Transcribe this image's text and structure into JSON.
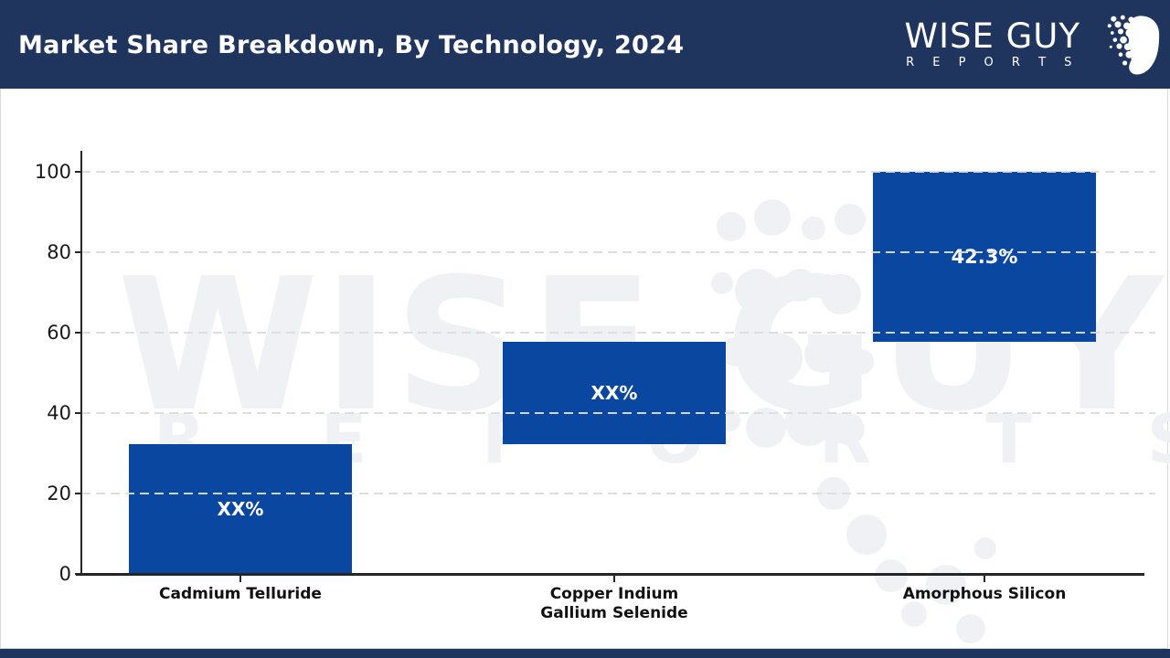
{
  "header": {
    "title": "Market Share Breakdown, By Technology, 2024",
    "logo_line1": "WISE GUY",
    "logo_line2": "R E P O R T S",
    "bg_color": "#20355e"
  },
  "watermark": {
    "line1": "WISE GUY",
    "line2": "R E P O R T S",
    "color": "#f0f1f4"
  },
  "chart_data": {
    "type": "bar",
    "variant": "waterfall",
    "title": "Market Share Breakdown, By Technology, 2024",
    "categories": [
      "Cadmium Telluride",
      "Copper Indium Gallium Selenide",
      "Amorphous Silicon"
    ],
    "category_lines": [
      [
        "Cadmium Telluride"
      ],
      [
        "Copper Indium",
        "Gallium Selenide"
      ],
      [
        "Amorphous Silicon"
      ]
    ],
    "segments": [
      {
        "category": "Cadmium Telluride",
        "start": 0,
        "end": 32.3,
        "value_label": "XX%"
      },
      {
        "category": "Copper Indium Gallium Selenide",
        "start": 32.3,
        "end": 57.7,
        "value_label": "XX%"
      },
      {
        "category": "Amorphous Silicon",
        "start": 57.7,
        "end": 100,
        "value_label": "42.3%"
      }
    ],
    "y_ticks": [
      0,
      20,
      40,
      60,
      80,
      100
    ],
    "ylim": [
      0,
      105
    ],
    "xlabel": "",
    "ylabel": "",
    "legend": "none",
    "grid": "horizontal-dashed",
    "bar_color": "#0a47a0",
    "grid_color": "#dcdcdc",
    "axis_color": "#262626",
    "text_color": "#1a1a1a"
  }
}
